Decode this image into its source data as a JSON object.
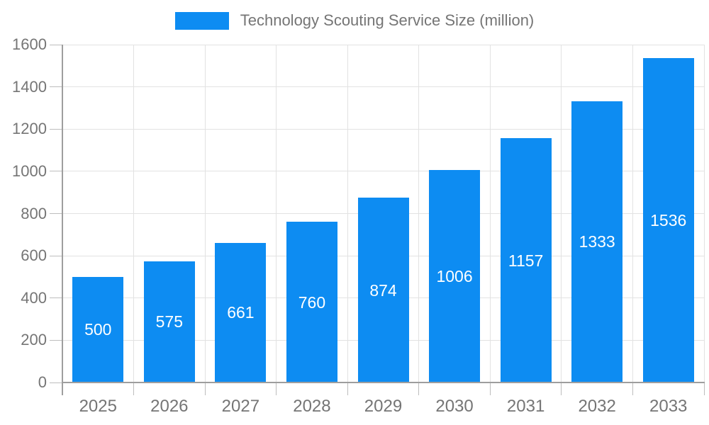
{
  "chart_data": {
    "type": "bar",
    "title": "",
    "legend": {
      "label": "Technology Scouting Service Size (million)",
      "position": "top-center"
    },
    "categories": [
      "2025",
      "2026",
      "2027",
      "2028",
      "2029",
      "2030",
      "2031",
      "2032",
      "2033"
    ],
    "series": [
      {
        "name": "Technology Scouting Service Size (million)",
        "values": [
          500,
          575,
          661,
          760,
          874,
          1006,
          1157,
          1333,
          1536
        ]
      }
    ],
    "value_labels_shown": true,
    "xlabel": "",
    "ylabel": "",
    "ylim": [
      0,
      1600
    ],
    "ytick_step": 200,
    "yticks": [
      0,
      200,
      400,
      600,
      800,
      1000,
      1200,
      1400,
      1600
    ],
    "grid": true,
    "colors": {
      "bar": "#0d8cf2",
      "bar_value_label": "#ffffff",
      "axis_line": "#9e9e9e",
      "gridline": "#e2e2e2",
      "tick": "#bdbdbd",
      "text": "#757575",
      "background": "#ffffff"
    }
  }
}
